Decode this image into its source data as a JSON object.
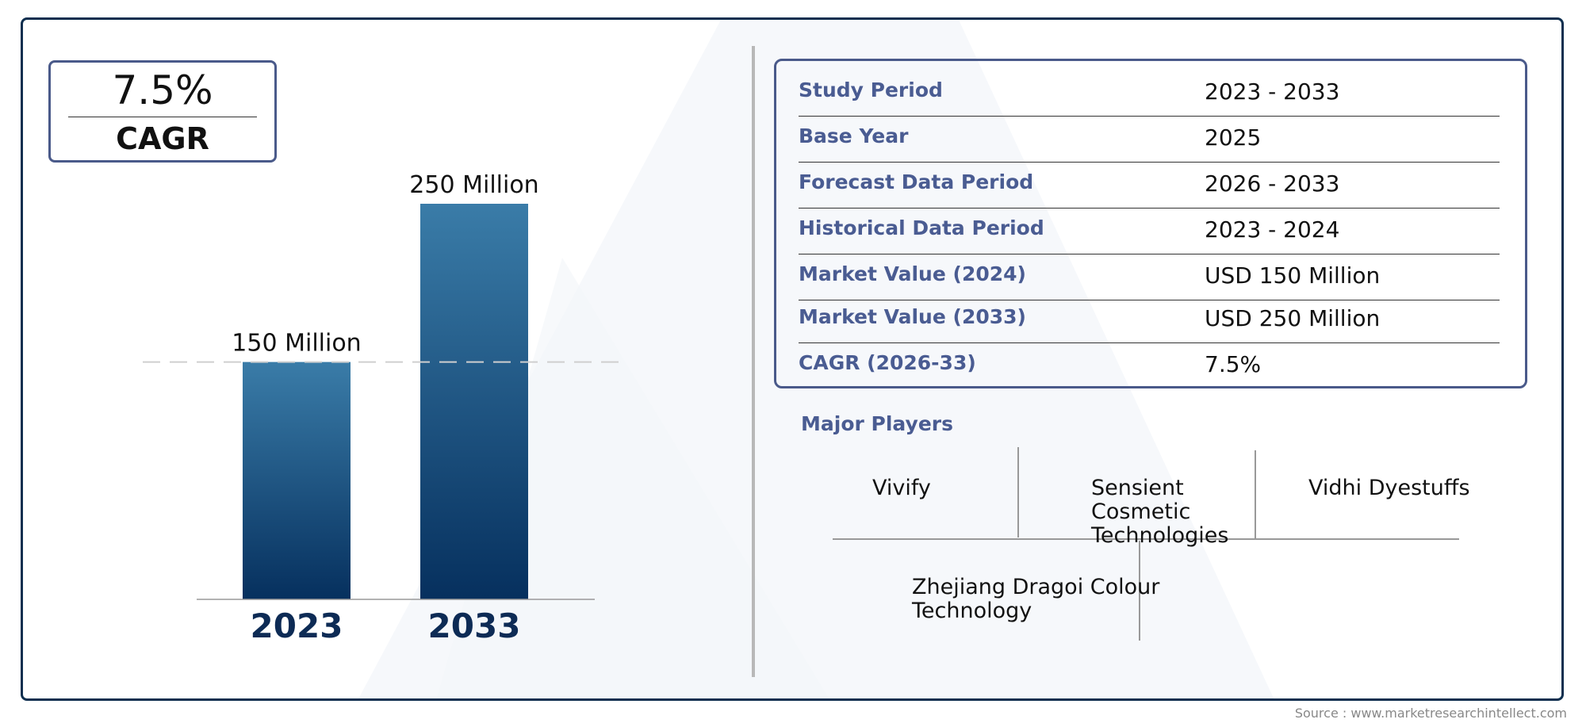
{
  "cagr_box": {
    "value": "7.5%",
    "label": "CAGR"
  },
  "chart_data": {
    "type": "bar",
    "categories": [
      "2023",
      "2033"
    ],
    "values": [
      150,
      250
    ],
    "data_labels": [
      "150 Million",
      "250 Million"
    ],
    "ylim": [
      0,
      250
    ],
    "grid": false,
    "reference_line_value": 150,
    "colors": {
      "bar_top": "#3a7ca8",
      "bar_bottom": "#06305e",
      "category": "#0d2b55"
    }
  },
  "info_table": {
    "rows": [
      {
        "key": "Study Period",
        "value": "2023 - 2033"
      },
      {
        "key": "Base Year",
        "value": "2025"
      },
      {
        "key": "Forecast Data Period",
        "value": "2026 - 2033"
      },
      {
        "key": "Historical Data Period",
        "value": "2023 - 2024"
      },
      {
        "key": "Market Value (2024)",
        "value": "USD 150 Million"
      },
      {
        "key": "Market Value (2033)",
        "value": "USD 250 Million"
      },
      {
        "key": "CAGR (2026-33)",
        "value": "7.5%"
      }
    ]
  },
  "major_players": {
    "title": "Major Players",
    "players": [
      "Vivify",
      "Sensient Cosmetic Technologies",
      "Vidhi Dyestuffs",
      "Zhejiang Dragoi Colour Technology"
    ]
  },
  "source": "Source : www.marketresearchintellect.com"
}
